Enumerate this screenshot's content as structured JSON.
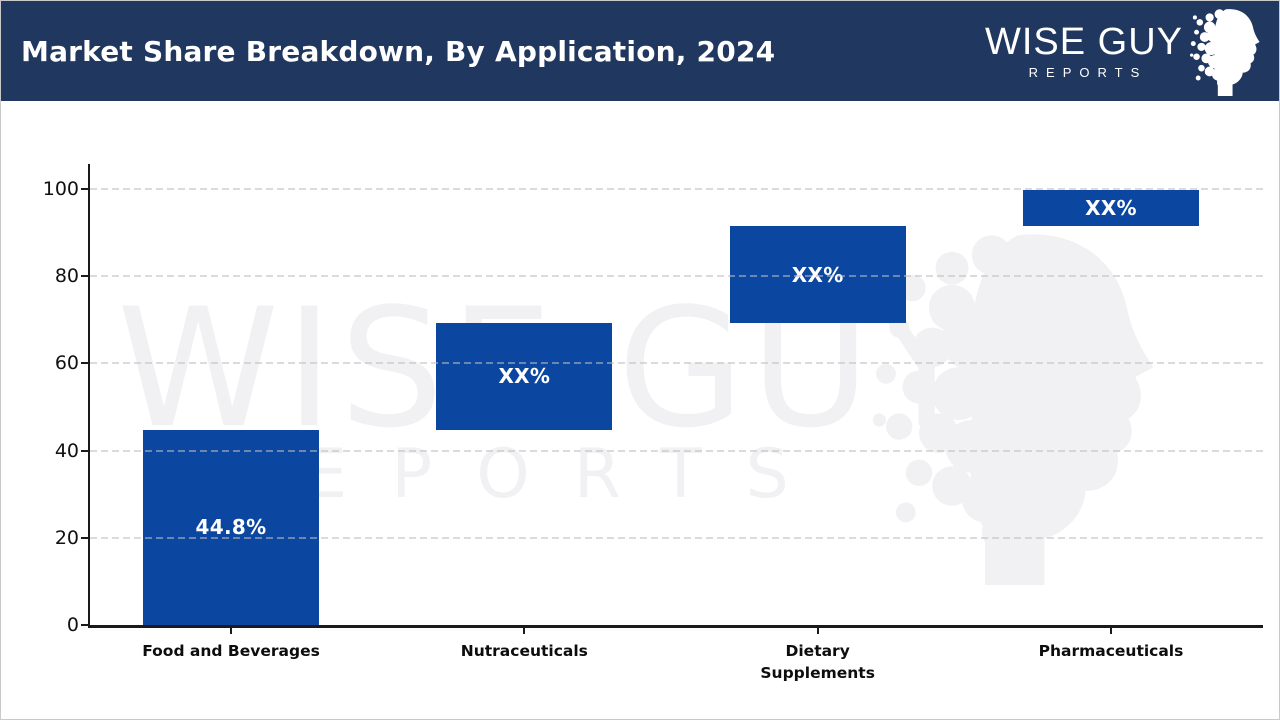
{
  "header": {
    "title": "Market Share Breakdown, By Application, 2024",
    "background_color": "#20375F",
    "logo": {
      "brand_top": "WISE GUY",
      "brand_bottom": "REPORTS"
    }
  },
  "watermark": {
    "line1": "WISE GUY",
    "line2": "REPORTS"
  },
  "chart_data": {
    "type": "bar",
    "subtype": "waterfall",
    "title": "Market Share Breakdown, By Application, 2024",
    "xlabel": "",
    "ylabel": "",
    "categories": [
      "Food and Beverages",
      "Nutraceuticals",
      "Dietary\nSupplements",
      "Pharmaceuticals"
    ],
    "segments": [
      {
        "category": "Food and Beverages",
        "start": 0,
        "end": 44.8,
        "label": "44.8%"
      },
      {
        "category": "Nutraceuticals",
        "start": 44.8,
        "end": 69.3,
        "label": "XX%"
      },
      {
        "category": "Dietary Supplements",
        "start": 69.3,
        "end": 91.4,
        "label": "XX%"
      },
      {
        "category": "Pharmaceuticals",
        "start": 91.4,
        "end": 99.8,
        "label": "XX%"
      }
    ],
    "yticks": [
      0,
      20,
      40,
      60,
      80,
      100
    ],
    "ylim": [
      0,
      105
    ],
    "grid": true,
    "grid_style": "dashed",
    "legend_position": "none",
    "bar_color": "#0B47A0",
    "value_label_color": "#ffffff"
  }
}
